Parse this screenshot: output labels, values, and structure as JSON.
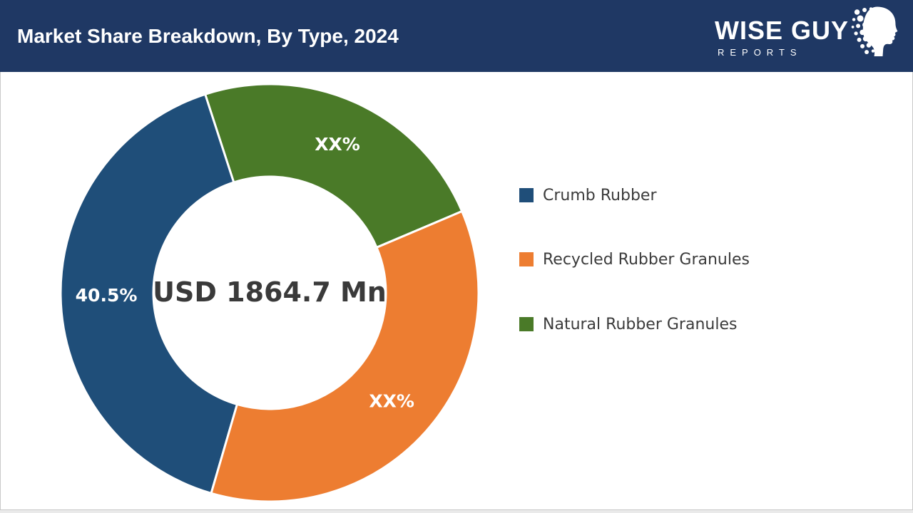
{
  "header": {
    "title": "Market Share Breakdown, By Type, 2024",
    "logo_line1": "WISE GUY",
    "logo_line2": "REPORTS"
  },
  "watermark": {
    "line1": "WISE GUY",
    "line2": "REPORTS"
  },
  "colors": {
    "header_bg": "#1f3864",
    "center_text": "#3a3a3a",
    "legend_text": "#3b3b3b",
    "slice_label_text": "#ffffff",
    "watermark": "#f2f2f4"
  },
  "chart_data": {
    "type": "pie",
    "subtype": "donut",
    "title": "Market Share Breakdown, By Type, 2024",
    "center_label": "USD 1864.7 Mn",
    "legend_position": "right",
    "direction": "ccw",
    "start_angle_deg": 23,
    "render_order": [
      2,
      0,
      1
    ],
    "segments": [
      {
        "label": "Crumb Rubber",
        "display_value": "40.5%",
        "value_pct": 40.5,
        "color": "#1f4e79"
      },
      {
        "label": "Recycled Rubber Granules",
        "display_value": "XX%",
        "value_pct": 35.9,
        "color": "#ed7d31"
      },
      {
        "label": "Natural Rubber Granules",
        "display_value": "XX%",
        "value_pct": 23.6,
        "color": "#4a7a28"
      }
    ]
  }
}
